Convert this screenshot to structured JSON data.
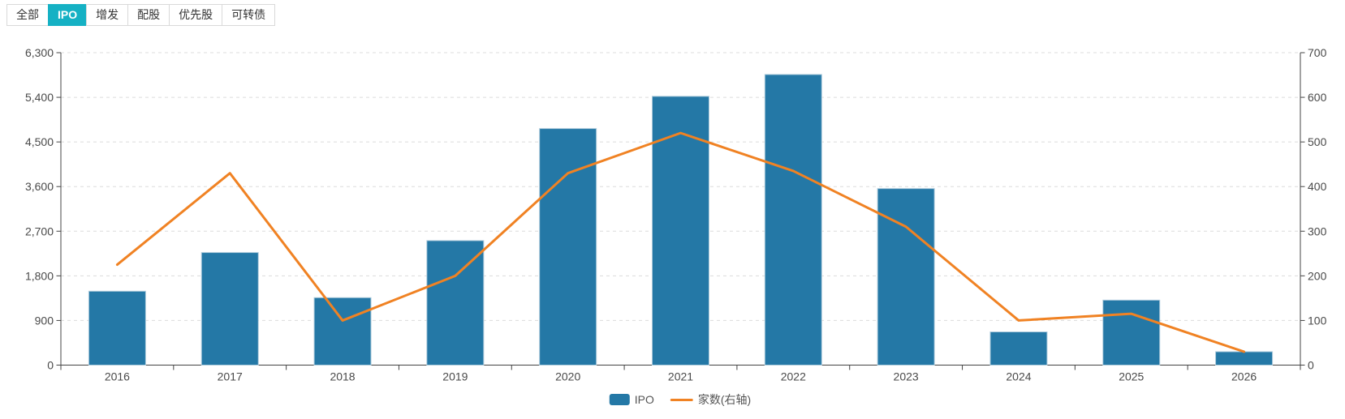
{
  "tabs": [
    {
      "id": "all",
      "label": "全部",
      "active": false
    },
    {
      "id": "ipo",
      "label": "IPO",
      "active": true
    },
    {
      "id": "secondary-offering",
      "label": "增发",
      "active": false
    },
    {
      "id": "rights-issue",
      "label": "配股",
      "active": false
    },
    {
      "id": "preferred-stock",
      "label": "优先股",
      "active": false
    },
    {
      "id": "convertible-bond",
      "label": "可转债",
      "active": false
    }
  ],
  "colors": {
    "tab_active": "#15b1c4",
    "bar": "#2478a6",
    "bar_edge": "#aecbdc",
    "line": "#f08223",
    "axis": "#444444",
    "gridline": "#dcdcdc",
    "label_text": "#4a4a4a"
  },
  "chart_data": {
    "type": "bar",
    "subtype": "combo bar+line, dual y-axis",
    "title": "",
    "categories": [
      "2016",
      "2017",
      "2018",
      "2019",
      "2020",
      "2021",
      "2022",
      "2023",
      "2024",
      "2025",
      "2026"
    ],
    "series": [
      {
        "name": "IPO",
        "type": "bar",
        "y_axis": "left",
        "color": "#2478a6",
        "values": [
          1490,
          2270,
          1360,
          2510,
          4770,
          5420,
          5860,
          3560,
          670,
          1310,
          270
        ]
      },
      {
        "name": "家数(右轴)",
        "type": "line",
        "y_axis": "right",
        "color": "#f08223",
        "values": [
          225,
          430,
          100,
          200,
          430,
          520,
          435,
          310,
          100,
          115,
          30
        ]
      }
    ],
    "left_axis": {
      "min": 0,
      "max": 6300,
      "step": 900,
      "tick_labels": [
        "0",
        "900",
        "1,800",
        "2,700",
        "3,600",
        "4,500",
        "5,400",
        "6,300"
      ]
    },
    "right_axis": {
      "min": 0,
      "max": 700,
      "step": 100,
      "tick_labels": [
        "0",
        "100",
        "200",
        "300",
        "400",
        "500",
        "600",
        "700"
      ]
    },
    "grid": "horizontal dashed gridlines on",
    "legend_position": "bottom-center"
  }
}
